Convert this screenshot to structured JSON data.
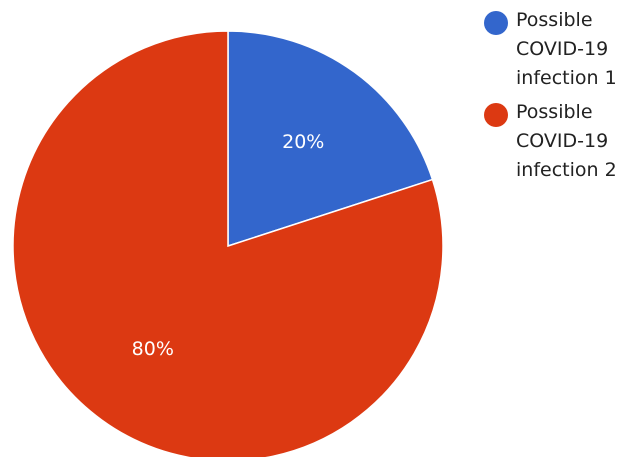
{
  "chart_data": {
    "type": "pie",
    "title": "",
    "slices": [
      {
        "label": "Possible COVID-19 infection 1",
        "value": 20,
        "display": "20%",
        "color": "#3366cc"
      },
      {
        "label": "Possible COVID-19 infection 2",
        "value": 80,
        "display": "80%",
        "color": "#dc3912"
      }
    ],
    "start_angle_deg": 0,
    "direction": "clockwise",
    "legend_position": "right"
  }
}
